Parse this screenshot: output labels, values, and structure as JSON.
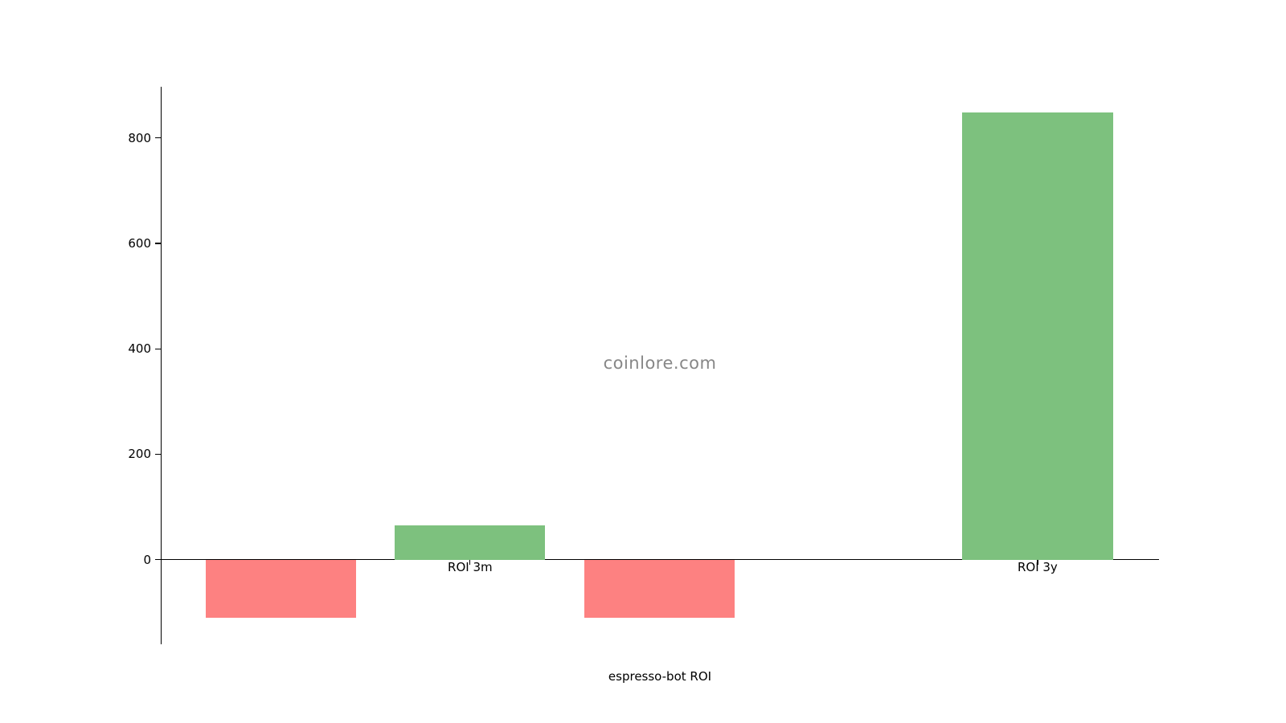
{
  "chart_data": {
    "type": "bar",
    "title": "espresso-bot ROI",
    "watermark": "coinlore.com",
    "categories": [
      "",
      "ROI 3m",
      "",
      "ROI 3y"
    ],
    "values": [
      -110.6,
      64.6,
      -110.6,
      848.3
    ],
    "slots": [
      0,
      1,
      2,
      4
    ],
    "bar_colors": [
      "#fd8181",
      "#7dc17e",
      "#fd8181",
      "#7dc17e"
    ],
    "yticks": [
      0,
      200,
      400,
      600,
      800
    ],
    "ylim": [
      -160,
      898
    ],
    "xlabel": "",
    "ylabel": "",
    "grid": false,
    "legend_visible": false,
    "colors": {
      "positive": "#7dc17e",
      "negative": "#fd8181",
      "axis": "#000000",
      "tick_text": "#000000",
      "watermark": "#878787",
      "background": "#ffffff"
    }
  }
}
